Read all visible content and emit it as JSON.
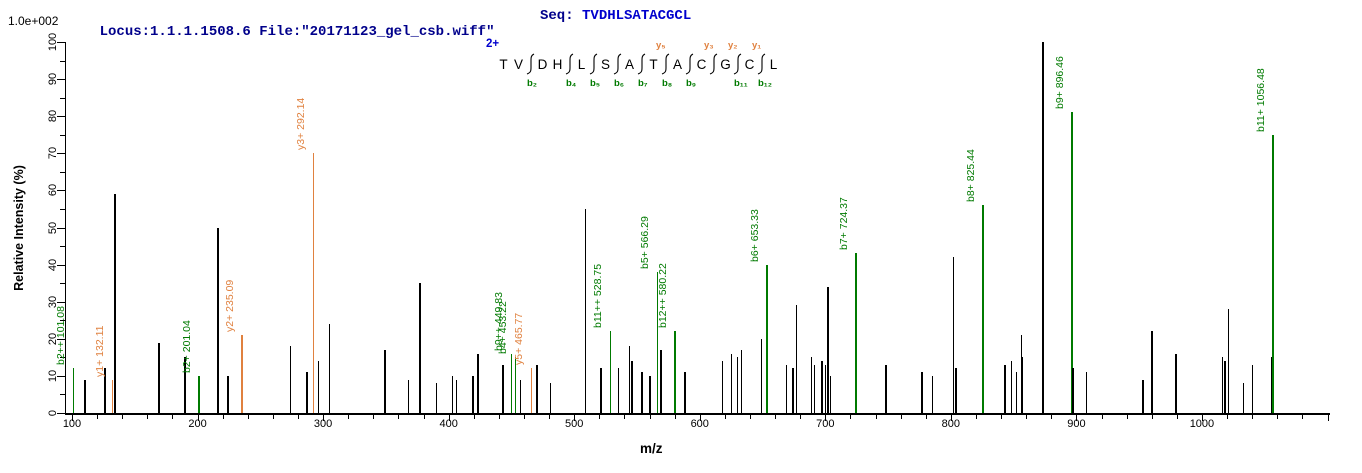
{
  "header": {
    "locus_file": "Locus:1.1.1.1508.6 File:\"20171123_gel_csb.wiff\"",
    "seq_label": "Seq: ",
    "seq_value": "TVDHLSATACGCL"
  },
  "colors": {
    "b_ion": "#007A00",
    "y_ion": "#E0813F",
    "peak_default": "#000000",
    "header_text": "#00008B",
    "sequence_text": "#0000CD"
  },
  "sequence_diagram": {
    "charge": "2+",
    "residues": [
      "T",
      "V",
      "D",
      "H",
      "L",
      "S",
      "A",
      "T",
      "A",
      "C",
      "G",
      "C",
      "L"
    ],
    "cuts": [
      {
        "after": 2,
        "b": "b₂"
      },
      {
        "after": 4,
        "b": "b₄"
      },
      {
        "after": 5,
        "b": "b₅"
      },
      {
        "after": 6,
        "b": "b₆"
      },
      {
        "after": 7,
        "b": "b₇"
      },
      {
        "after": 8,
        "b": "b₈",
        "y": "y₅"
      },
      {
        "after": 9,
        "b": "b₉"
      },
      {
        "after": 10,
        "y": "y₃"
      },
      {
        "after": 11,
        "b": "b₁₁",
        "y": "y₂"
      },
      {
        "after": 12,
        "b": "b₁₂",
        "y": "y₁"
      }
    ]
  },
  "chart_data": {
    "type": "bar",
    "subtype": "mass-spectrum-stick-plot",
    "xlabel": "m/z",
    "ylabel": "Relative  Intensity (%)",
    "y_scale_label": "1.0e+002",
    "xlim": [
      94,
      1102
    ],
    "ylim": [
      0,
      100
    ],
    "x_tick_labels": [
      100,
      200,
      300,
      400,
      500,
      600,
      700,
      800,
      900,
      1000
    ],
    "y_tick_labels": [
      0,
      10,
      20,
      30,
      40,
      50,
      60,
      70,
      80,
      90,
      100
    ],
    "grid": false,
    "legend": false,
    "peaks": [
      [
        101.08,
        12,
        "b",
        "b2++ 101.08"
      ],
      [
        110,
        9
      ],
      [
        126,
        12
      ],
      [
        132.11,
        9,
        "y",
        "y1+ 132.11"
      ],
      [
        134,
        59
      ],
      [
        169,
        19
      ],
      [
        190,
        15
      ],
      [
        201.04,
        10,
        "b",
        "b2+ 201.04"
      ],
      [
        216,
        50
      ],
      [
        224,
        10
      ],
      [
        235.09,
        21,
        "y",
        "y2+ 235.09"
      ],
      [
        274,
        18
      ],
      [
        287,
        11
      ],
      [
        292.14,
        70,
        "y",
        "y3+ 292.14"
      ],
      [
        296,
        14
      ],
      [
        305,
        24
      ],
      [
        349,
        17
      ],
      [
        368,
        9
      ],
      [
        377,
        35
      ],
      [
        390,
        8
      ],
      [
        403,
        10
      ],
      [
        406,
        9
      ],
      [
        419,
        10
      ],
      [
        423,
        16
      ],
      [
        443,
        13
      ],
      [
        449.83,
        16,
        "b",
        "b9++ 449.83"
      ],
      [
        453.22,
        15,
        "b",
        "b4+ 453.22"
      ],
      [
        457,
        9
      ],
      [
        465.77,
        12,
        "y",
        "y5+ 465.77"
      ],
      [
        470,
        13
      ],
      [
        481,
        8
      ],
      [
        509,
        55
      ],
      [
        521,
        12
      ],
      [
        528.75,
        22,
        "b",
        "b11++ 528.75"
      ],
      [
        535,
        12
      ],
      [
        544,
        18
      ],
      [
        546,
        14
      ],
      [
        554,
        11
      ],
      [
        560,
        10
      ],
      [
        566.29,
        38,
        "b",
        "b5+ 566.29"
      ],
      [
        569,
        17
      ],
      [
        580.22,
        22,
        "b",
        "b12++ 580.22"
      ],
      [
        588,
        11
      ],
      [
        618,
        14
      ],
      [
        625,
        16
      ],
      [
        630,
        15
      ],
      [
        633,
        17
      ],
      [
        649,
        20
      ],
      [
        653.33,
        40,
        "b",
        "b6+ 653.33"
      ],
      [
        669,
        13
      ],
      [
        674,
        12
      ],
      [
        677,
        29
      ],
      [
        689,
        15
      ],
      [
        691,
        13
      ],
      [
        697,
        14
      ],
      [
        700,
        13
      ],
      [
        702,
        34
      ],
      [
        704,
        10
      ],
      [
        724.37,
        43,
        "b",
        "b7+ 724.37"
      ],
      [
        748,
        13
      ],
      [
        777,
        11
      ],
      [
        785,
        10
      ],
      [
        802,
        42
      ],
      [
        804,
        12
      ],
      [
        825.44,
        56,
        "b",
        "b8+ 825.44"
      ],
      [
        843,
        13
      ],
      [
        848,
        14
      ],
      [
        852,
        11
      ],
      [
        856,
        21
      ],
      [
        857,
        15
      ],
      [
        873,
        100
      ],
      [
        896.46,
        81,
        "b",
        "b9+ 896.46"
      ],
      [
        897,
        12
      ],
      [
        908,
        11
      ],
      [
        953,
        9
      ],
      [
        960,
        22
      ],
      [
        979,
        16
      ],
      [
        1016,
        15
      ],
      [
        1018,
        14
      ],
      [
        1021,
        28
      ],
      [
        1033,
        8
      ],
      [
        1040,
        13
      ],
      [
        1055,
        15
      ],
      [
        1056.48,
        75,
        "b",
        "b11+ 1056.48"
      ]
    ]
  }
}
